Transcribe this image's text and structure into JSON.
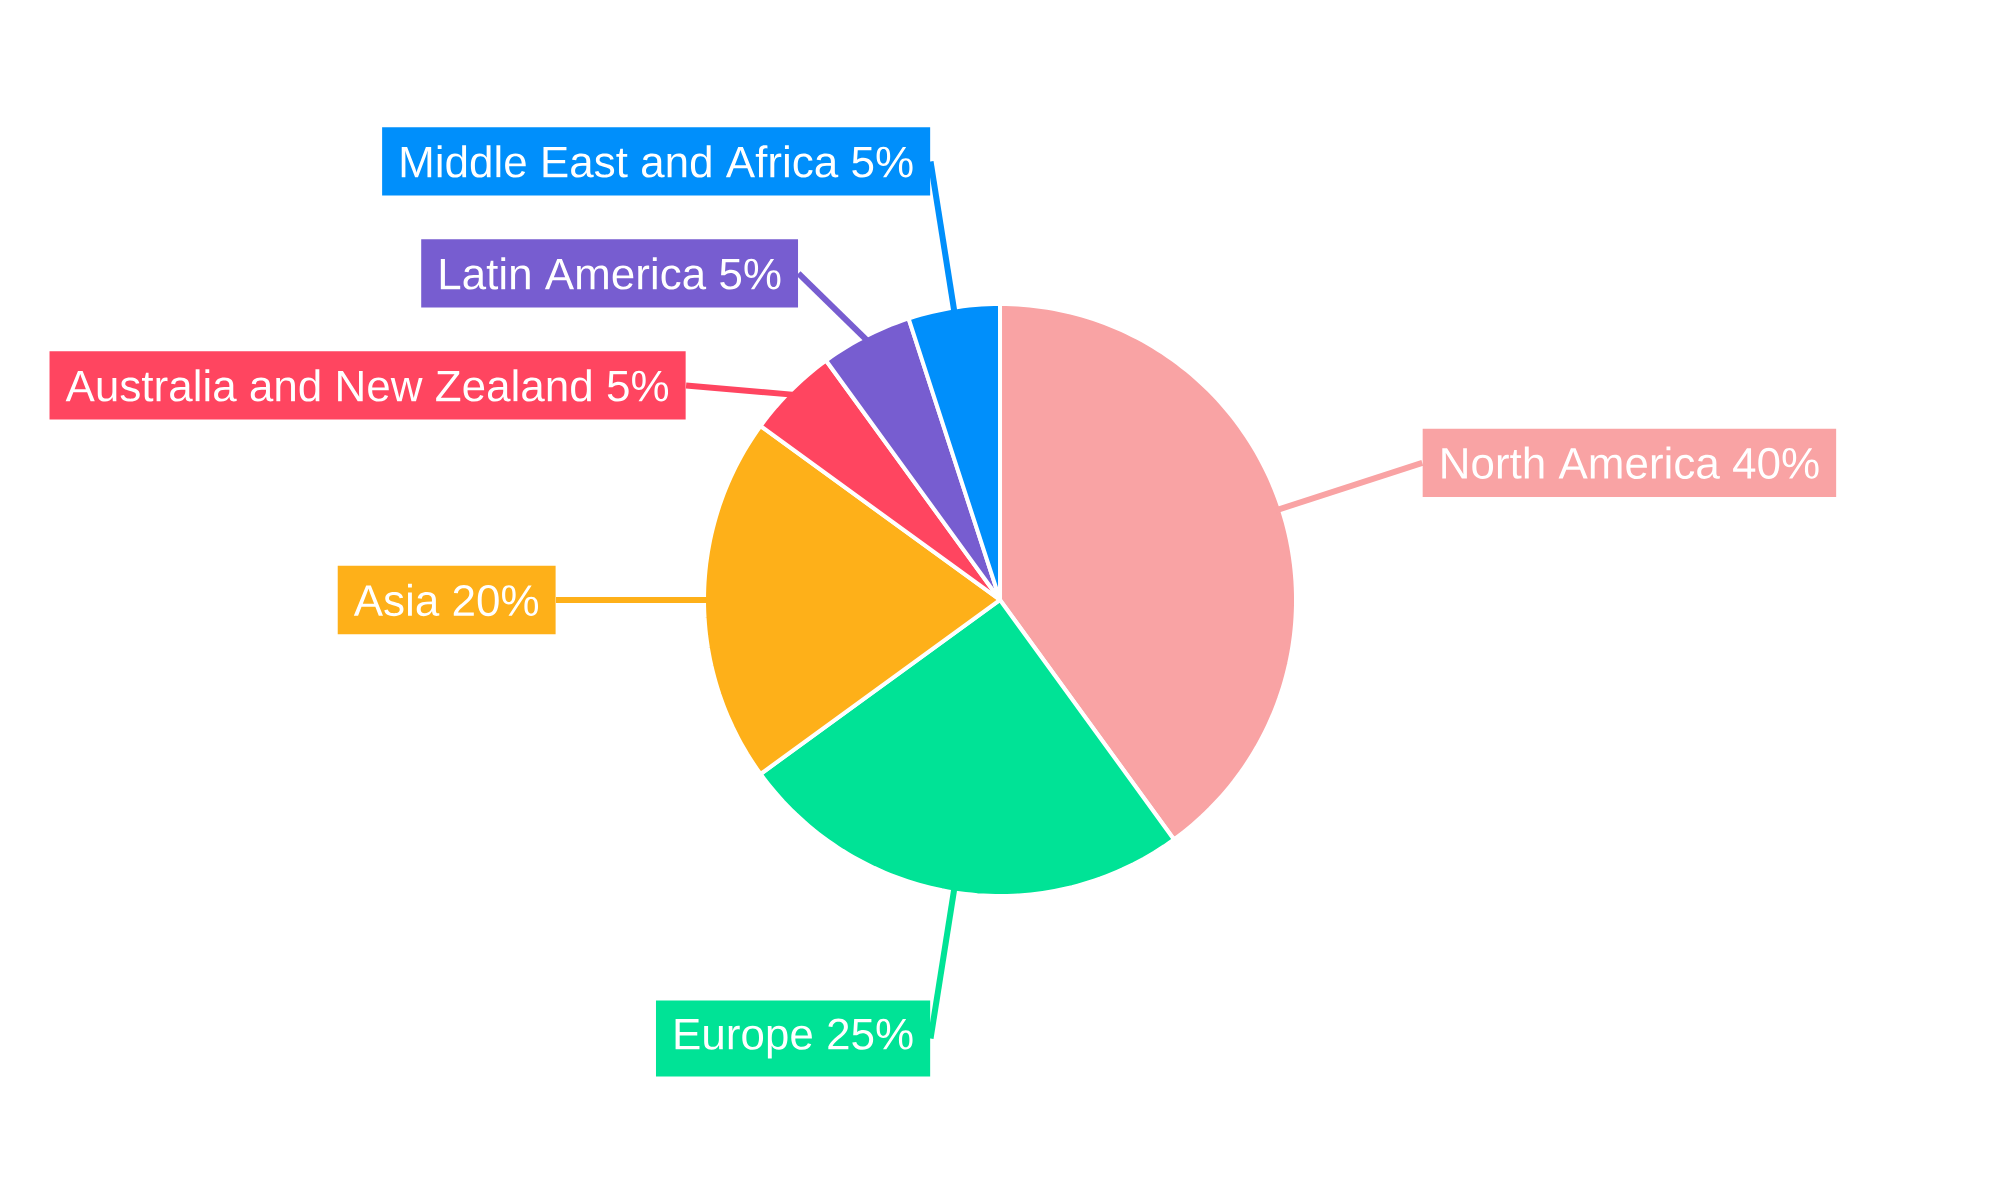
{
  "chart_data": {
    "type": "pie",
    "categories": [
      "North America",
      "Europe",
      "Asia",
      "Australia and New Zealand",
      "Latin America",
      "Middle East and Africa"
    ],
    "values": [
      40,
      25,
      20,
      5,
      5,
      5
    ],
    "value_labels": [
      "40%",
      "25%",
      "20%",
      "5%",
      "5%",
      "5%"
    ],
    "colors": [
      "#f9a3a4",
      "#00e396",
      "#feb019",
      "#ff4560",
      "#775dd0",
      "#008ffb"
    ]
  }
}
